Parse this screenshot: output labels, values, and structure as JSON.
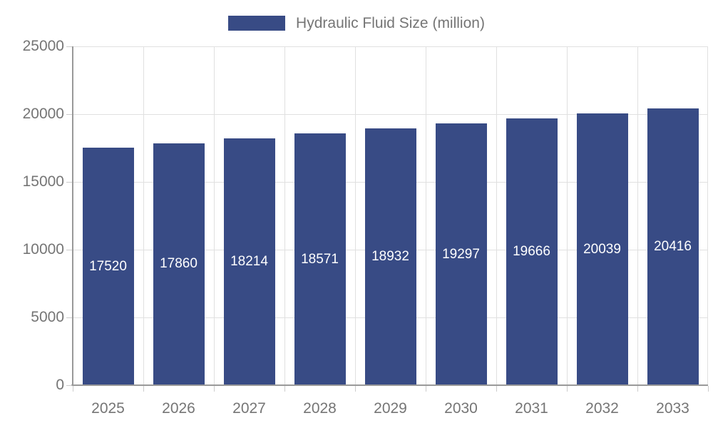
{
  "chart_data": {
    "type": "bar",
    "title": "",
    "legend": [
      "Hydraulic Fluid Size (million)"
    ],
    "legend_position": "top-center",
    "categories": [
      "2025",
      "2026",
      "2027",
      "2028",
      "2029",
      "2030",
      "2031",
      "2032",
      "2033"
    ],
    "series": [
      {
        "name": "Hydraulic Fluid Size (million)",
        "values": [
          17520,
          17860,
          18214,
          18571,
          18932,
          19297,
          19666,
          20039,
          20416
        ]
      }
    ],
    "xlabel": "",
    "ylabel": "",
    "ylim": [
      0,
      25000
    ],
    "yticks": [
      0,
      5000,
      10000,
      15000,
      20000,
      25000
    ],
    "grid": true,
    "value_labels": "inside-center",
    "colors": {
      "bar": "#384b85",
      "axis_line": "#999999",
      "gridline": "#e0e0e0",
      "tick": "#cccccc",
      "axis_text": "#757575",
      "value_label_text": "#ffffff",
      "background": "#ffffff"
    }
  }
}
